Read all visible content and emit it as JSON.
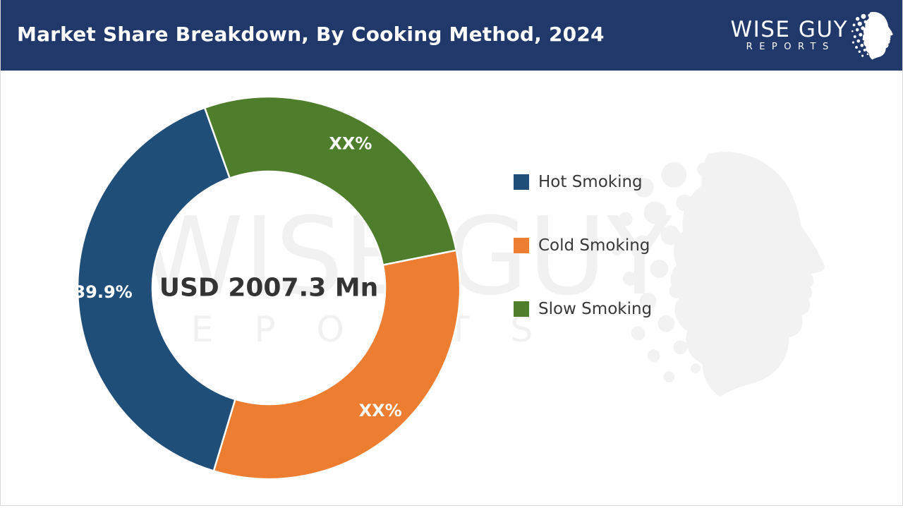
{
  "header": {
    "title": "Market Share Breakdown, By Cooking Method, 2024",
    "bg_color": "#21386B",
    "logo": {
      "line1": "WISE GUY",
      "line2": "REPORTS",
      "icon": "face-profile-dots-icon"
    }
  },
  "watermark": {
    "line1": "WISE GUY",
    "line2": "REPORTS",
    "icon": "face-profile-dots-icon"
  },
  "chart_data": {
    "type": "pie",
    "subtype": "donut",
    "title": "Market Share Breakdown, By Cooking Method, 2024",
    "center_label": "USD 2007.3 Mn",
    "start_angle_deg": -19.6,
    "inner_radius_ratio": 0.61,
    "legend_position": "right",
    "segments": [
      {
        "name": "Slow Smoking",
        "display_label": "XX%",
        "value_pct": 27.3,
        "color": "#4E7D2B"
      },
      {
        "name": "Cold Smoking",
        "display_label": "XX%",
        "value_pct": 32.8,
        "color": "#ED7D31"
      },
      {
        "name": "Hot Smoking",
        "display_label": "39.9%",
        "value_pct": 39.9,
        "color": "#1F4E79"
      }
    ],
    "legend": [
      {
        "label": "Hot Smoking",
        "color": "#1F4E79"
      },
      {
        "label": "Cold Smoking",
        "color": "#ED7D31"
      },
      {
        "label": "Slow Smoking",
        "color": "#4E7D2B"
      }
    ]
  },
  "colors": {
    "header_bg": "#21386B",
    "watermark": "#F1F1F1",
    "center_text": "#333333",
    "frame_border": "#D9D9D9"
  }
}
